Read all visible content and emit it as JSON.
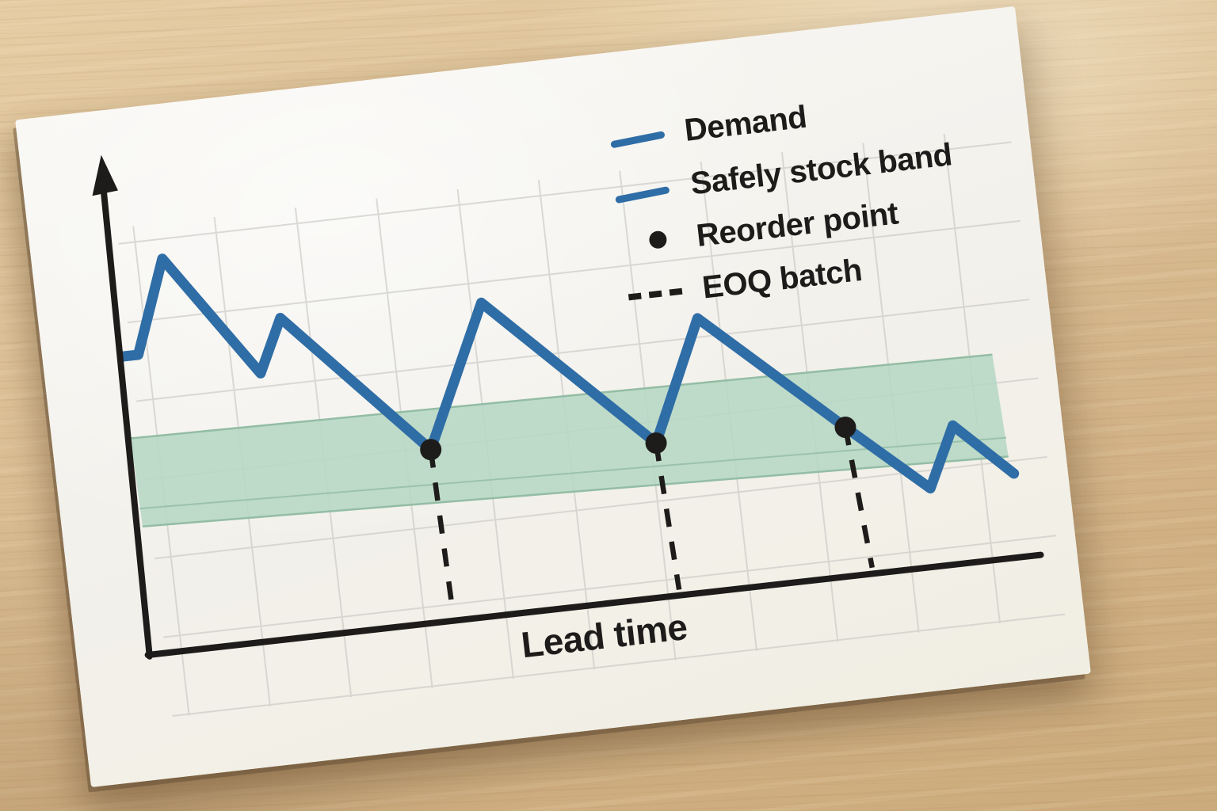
{
  "axis": {
    "x_label": "Lead time"
  },
  "legend": {
    "items": [
      {
        "label": "Demand",
        "swatch": "line",
        "color": "#2f6da6"
      },
      {
        "label": "Safely stock band",
        "swatch": "line",
        "color": "#2f6da6"
      },
      {
        "label": "Reorder point",
        "swatch": "dot",
        "color": "#1d1c1a"
      },
      {
        "label": "EOQ batch",
        "swatch": "dashed-line",
        "color": "#1d1c1a"
      }
    ]
  },
  "chart_data": {
    "type": "line",
    "title": "",
    "xlabel": "Lead time",
    "ylabel": "",
    "x_range": [
      0,
      100
    ],
    "y_range": [
      0,
      100
    ],
    "grid": true,
    "legend_position": "top-right",
    "series": [
      {
        "name": "Demand",
        "color": "#2f6da6",
        "points": [
          [
            0.5,
            63.0
          ],
          [
            2.3,
            63.0
          ],
          [
            6.2,
            82.5
          ],
          [
            15.7,
            56.2
          ],
          [
            18.6,
            67.3
          ],
          [
            33.7,
            36.2
          ],
          [
            41.2,
            65.7
          ],
          [
            58.9,
            32.2
          ],
          [
            65.1,
            57.3
          ],
          [
            80.2,
            31.0
          ],
          [
            88.9,
            16.2
          ],
          [
            92.2,
            28.8
          ],
          [
            98.4,
            17.3
          ]
        ]
      }
    ],
    "safety_stock_band": {
      "label": "Safely stock band",
      "fill_color": "#b6d7c4",
      "edge_color": "#93bda4",
      "corners": [
        [
          0.4,
          45.7
        ],
        [
          97.5,
          42.7
        ],
        [
          98.0,
          21.0
        ],
        [
          0.6,
          27.0
        ]
      ],
      "inner_line": [
        [
          0.5,
          30.8
        ],
        [
          98.0,
          25.0
        ]
      ]
    },
    "reorder_points": {
      "label": "Reorder point",
      "color": "#1d1c1a",
      "points": [
        [
          33.7,
          36.2
        ],
        [
          58.9,
          32.2
        ],
        [
          80.2,
          31.0
        ]
      ]
    },
    "eoq_drop_lines": {
      "label": "EOQ batch",
      "color": "#1d1c1a",
      "lines": [
        [
          [
            33.7,
            36.2
          ],
          [
            34.1,
            1.5
          ]
        ],
        [
          [
            58.9,
            32.2
          ],
          [
            59.6,
            1.0
          ]
        ],
        [
          [
            80.2,
            31.0
          ],
          [
            81.4,
            1.0
          ]
        ]
      ]
    }
  },
  "colors": {
    "demand_blue": "#2f6da6",
    "band_green": "#b6d7c4",
    "ink": "#1d1c1a",
    "card_white": "#f2f0eb",
    "wood": "#d4b489",
    "grid_gray": "#c6c5c1"
  }
}
